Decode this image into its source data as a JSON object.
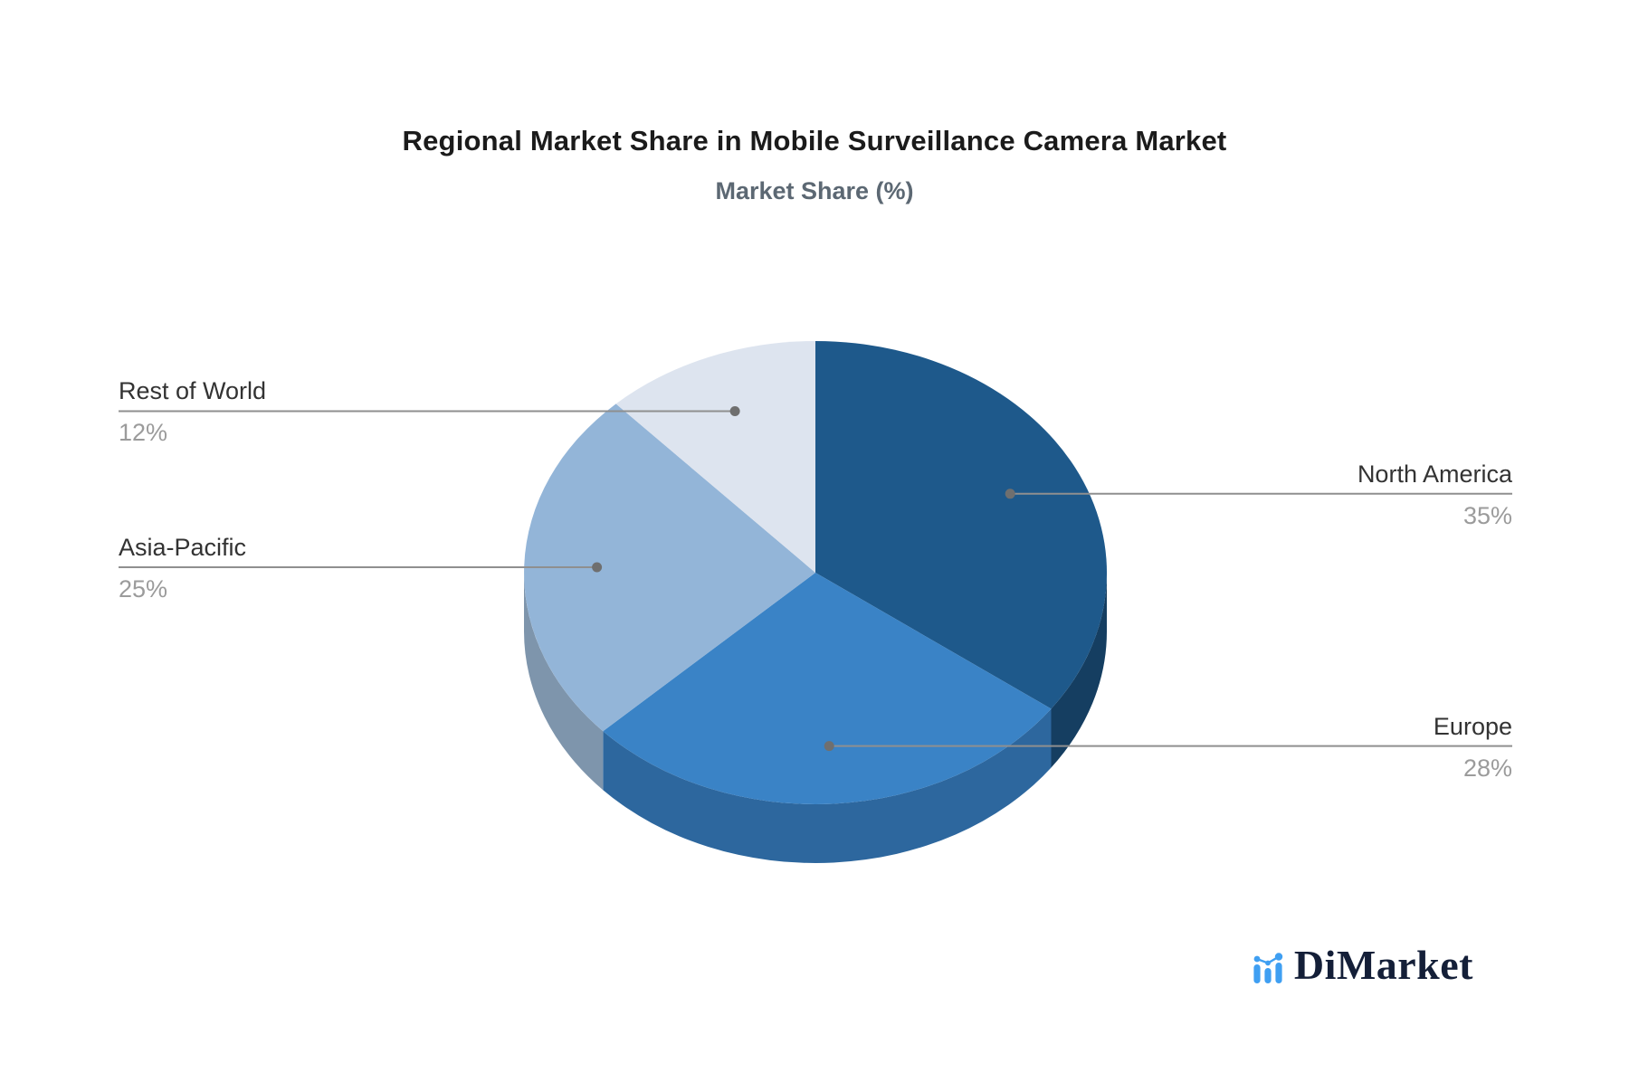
{
  "page": {
    "background": "#ffffff"
  },
  "header": {
    "title": "Regional Market Share in Mobile Surveillance Camera Market",
    "subtitle": "Market Share (%)"
  },
  "logo": {
    "text": "DiMarket",
    "icon": "bar-chart-with-trend-icon",
    "icon_color": "#3f9ff2",
    "text_color": "#141f38"
  },
  "chart_data": {
    "type": "pie",
    "title": "Regional Market Share in Mobile Surveillance Camera Market",
    "subtitle": "Market Share (%)",
    "unit": "%",
    "effect": "3d",
    "legend_position": "none",
    "categories": [
      "North America",
      "Europe",
      "Asia-Pacific",
      "Rest of World"
    ],
    "values": [
      35,
      28,
      25,
      12
    ],
    "slices": [
      {
        "label": "North America",
        "value": 35,
        "value_label": "35%",
        "color": "#1E598B",
        "side_color": "#153E61",
        "label_side": "right"
      },
      {
        "label": "Europe",
        "value": 28,
        "value_label": "28%",
        "color": "#3A83C6",
        "side_color": "#2D679E",
        "label_side": "right"
      },
      {
        "label": "Asia-Pacific",
        "value": 25,
        "value_label": "25%",
        "color": "#93B5D8",
        "side_color": "#7E95AC",
        "label_side": "left"
      },
      {
        "label": "Rest of World",
        "value": 12,
        "value_label": "12%",
        "color": "#DDE4EF",
        "side_color": "#B9C4D4",
        "label_side": "left"
      }
    ],
    "style": {
      "leader_line_color": "#8F8F8F",
      "dot_color": "#6F6F6F",
      "label_color": "#333333",
      "value_color": "#9B9B9B"
    }
  }
}
